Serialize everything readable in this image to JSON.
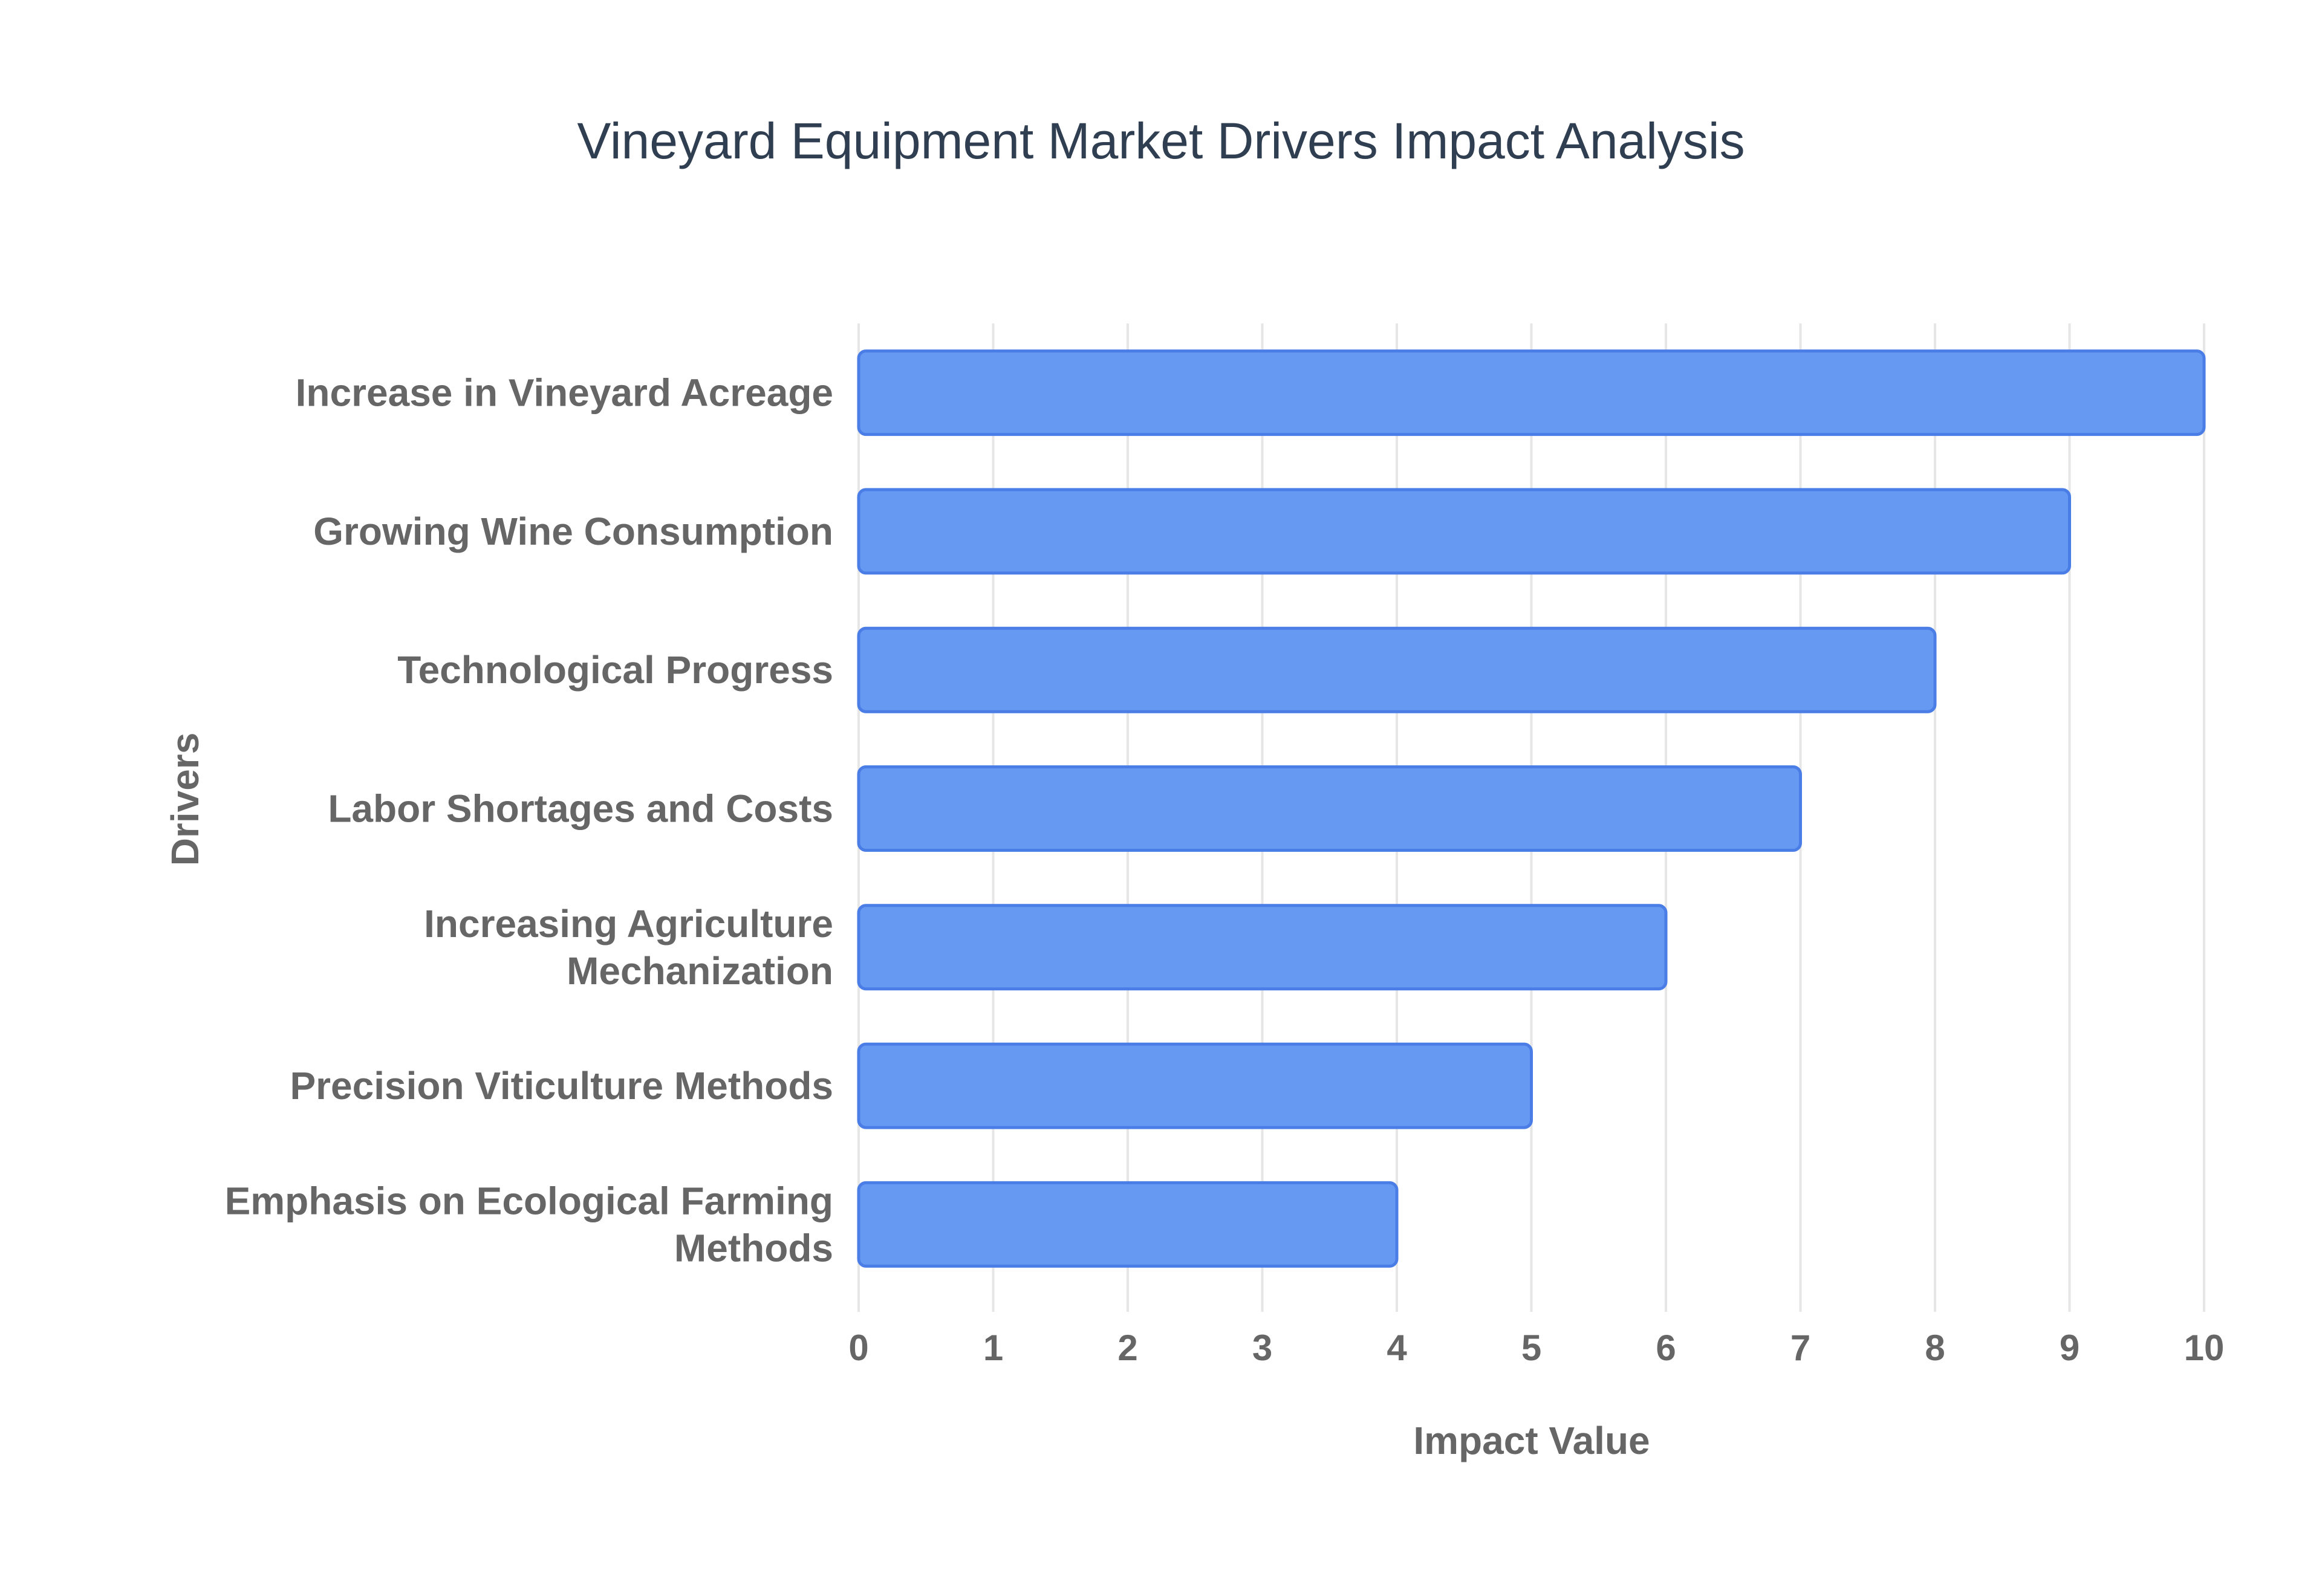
{
  "chart_data": {
    "type": "bar",
    "orientation": "horizontal",
    "title": "Vineyard Equipment Market Drivers Impact Analysis",
    "xlabel": "Impact Value",
    "ylabel": "Drivers",
    "categories": [
      [
        "Increase in Vineyard Acreage"
      ],
      [
        "Growing Wine Consumption"
      ],
      [
        "Technological Progress"
      ],
      [
        "Labor Shortages and Costs"
      ],
      [
        "Increasing Agriculture",
        "Mechanization"
      ],
      [
        "Precision Viticulture Methods"
      ],
      [
        "Emphasis on Ecological Farming",
        "Methods"
      ]
    ],
    "values": [
      10,
      9,
      8,
      7,
      6,
      5,
      4
    ],
    "xlim": [
      0,
      10
    ],
    "xticks": [
      "0",
      "1",
      "2",
      "3",
      "4",
      "5",
      "6",
      "7",
      "8",
      "9",
      "10"
    ],
    "grid": true,
    "bar_color": "#6699f2"
  }
}
